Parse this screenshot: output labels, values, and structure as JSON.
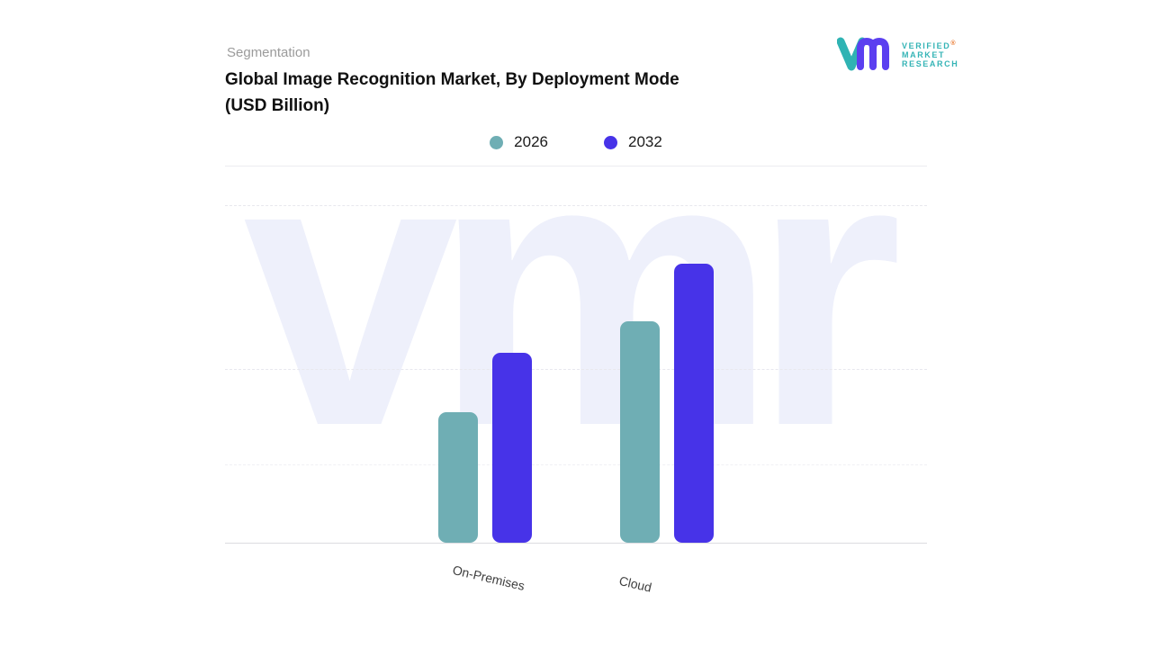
{
  "header": {
    "eyebrow": "Segmentation",
    "title_line1": " Global Image Recognition Market, By Deployment Mode",
    "title_line2": "(USD Billion)"
  },
  "watermark": "vmr",
  "logo": {
    "line1": "VERIFIED",
    "line2": "MARKET",
    "line3": "RESEARCH",
    "registered_mark": "®",
    "teal": "#2fb3b3",
    "purple": "#5b3ff0"
  },
  "chart_data": {
    "type": "bar",
    "title": "Global Image Recognition Market, By Deployment Mode (USD Billion)",
    "categories": [
      "On-Premises",
      "Cloud"
    ],
    "series": [
      {
        "name": "2026",
        "color": "#6FAEB4",
        "values": [
          14.3,
          24.3
        ]
      },
      {
        "name": "2032",
        "color": "#4733E8",
        "values": [
          20.8,
          30.6
        ]
      }
    ],
    "xlabel": "",
    "ylabel": "",
    "ylim": [
      0,
      37
    ],
    "grid": "horizontal-dashed",
    "legend_position": "top-center",
    "value_labels": false,
    "note": "No numeric axis shown in source; values estimated from bar heights in relative USD Billion units."
  }
}
